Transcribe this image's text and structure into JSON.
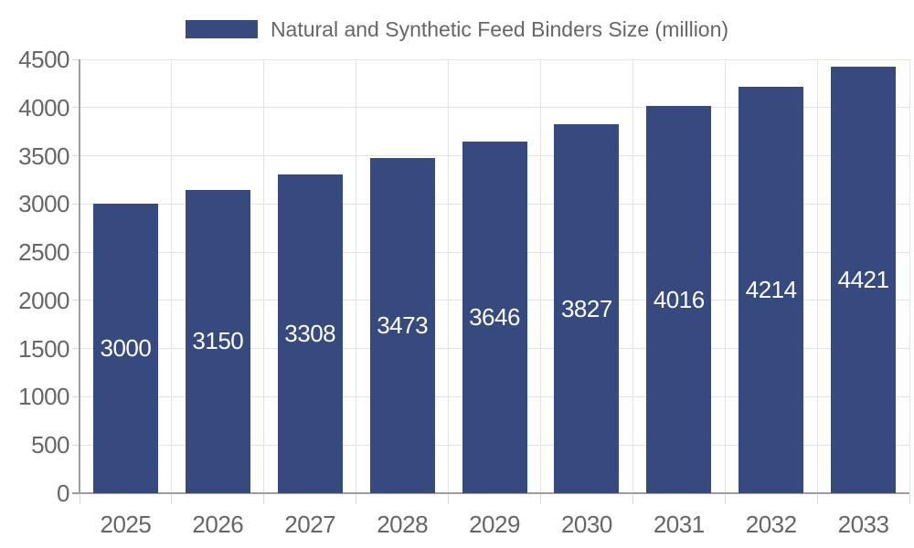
{
  "chart_data": {
    "type": "bar",
    "title": "Natural and Synthetic Feed Binders Size (million)",
    "series": [
      {
        "name": "Natural and Synthetic Feed Binders Size (million)",
        "values": [
          3000,
          3150,
          3308,
          3473,
          3646,
          3827,
          4016,
          4214,
          4421
        ]
      }
    ],
    "categories": [
      "2025",
      "2026",
      "2027",
      "2028",
      "2029",
      "2030",
      "2031",
      "2032",
      "2033"
    ],
    "value_labels": [
      "3000",
      "3150",
      "3308",
      "3473",
      "3646",
      "3827",
      "4016",
      "4214",
      "4421"
    ],
    "xlabel": "",
    "ylabel": "",
    "ylim": [
      0,
      4500
    ],
    "ytick_step": 500,
    "ytick_labels": [
      "0",
      "500",
      "1000",
      "1500",
      "2000",
      "2500",
      "3000",
      "3500",
      "4000",
      "4500"
    ],
    "grid": true,
    "legend_position": "top",
    "colors": {
      "bar": "#374A7F",
      "value_label": "#ffffff",
      "axis_text": "#666666",
      "gridline": "#e3e3e3",
      "tick": "#d9d9d9",
      "axis_line": "#9e9e9e",
      "background": "#ffffff"
    }
  }
}
